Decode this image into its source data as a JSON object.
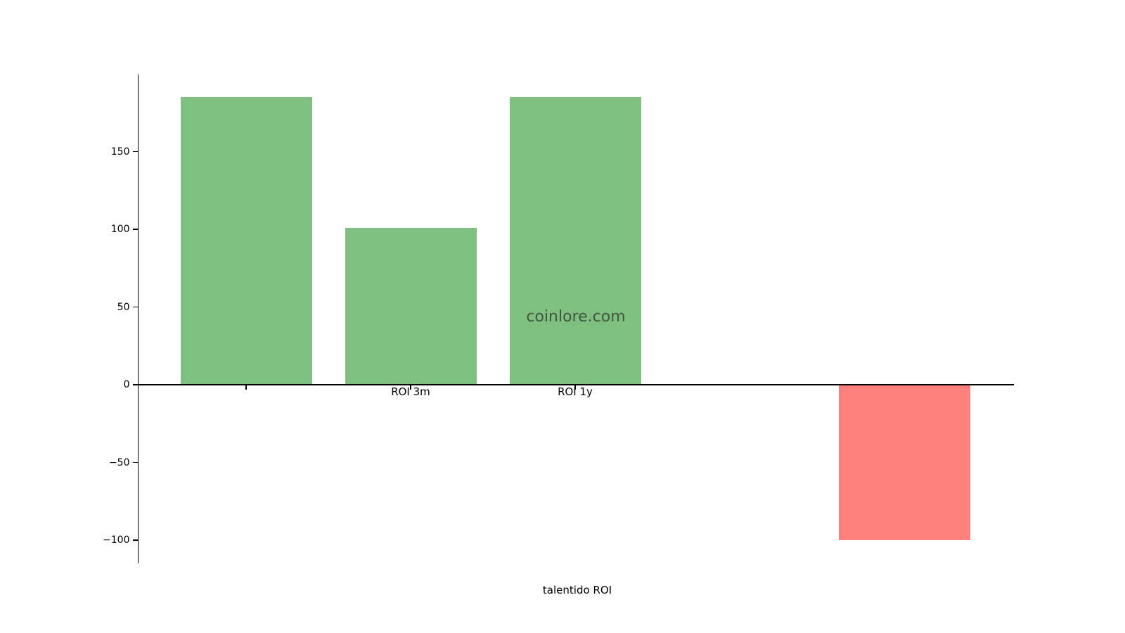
{
  "chart_data": {
    "type": "bar",
    "title": "",
    "xlabel": "talentido ROI",
    "ylabel": "",
    "watermark": "coinlore.com",
    "categories": [
      "",
      "ROI 3m",
      "ROI 1y",
      "",
      ""
    ],
    "values": [
      185,
      101,
      185,
      0,
      -100
    ],
    "bar_color_positive": "#7fbf7f",
    "bar_color_negative": "#ff7f7f",
    "axis_color": "#000000",
    "background_color": "#ffffff",
    "yticks": [
      150,
      100,
      50,
      0,
      -50,
      -100
    ],
    "xticks": [
      {
        "index": 0,
        "label": ""
      },
      {
        "index": 1,
        "label": "ROI 3m"
      },
      {
        "index": 2,
        "label": "ROI 1y"
      }
    ],
    "ylim": [
      -115,
      198
    ],
    "grid": false,
    "legend": null
  }
}
